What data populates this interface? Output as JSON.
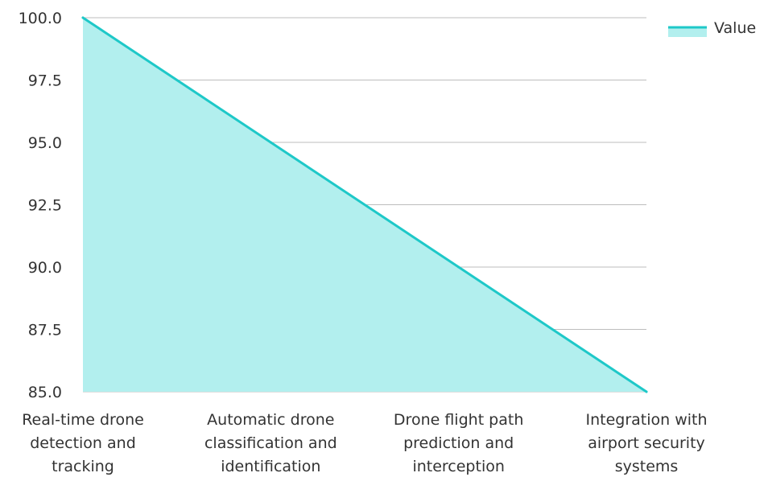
{
  "chart_data": {
    "type": "area",
    "categories": [
      [
        "Real-time drone",
        "detection and",
        "tracking"
      ],
      [
        "Automatic drone",
        "classification and",
        "identification"
      ],
      [
        "Drone flight path",
        "prediction and",
        "interception"
      ],
      [
        "Integration with",
        "airport security",
        "systems"
      ]
    ],
    "series": [
      {
        "name": "Value",
        "values": [
          100.0,
          95.0,
          90.0,
          85.0
        ]
      }
    ],
    "yticks": [
      "85.0",
      "87.5",
      "90.0",
      "92.5",
      "95.0",
      "97.5",
      "100.0"
    ],
    "ylim": [
      85,
      100
    ],
    "grid": true,
    "legend_position": "top-right",
    "colors": {
      "line": "#1ec8c8",
      "fill": "#b2efee",
      "grid": "#bdbdbd",
      "text": "#333333"
    }
  }
}
